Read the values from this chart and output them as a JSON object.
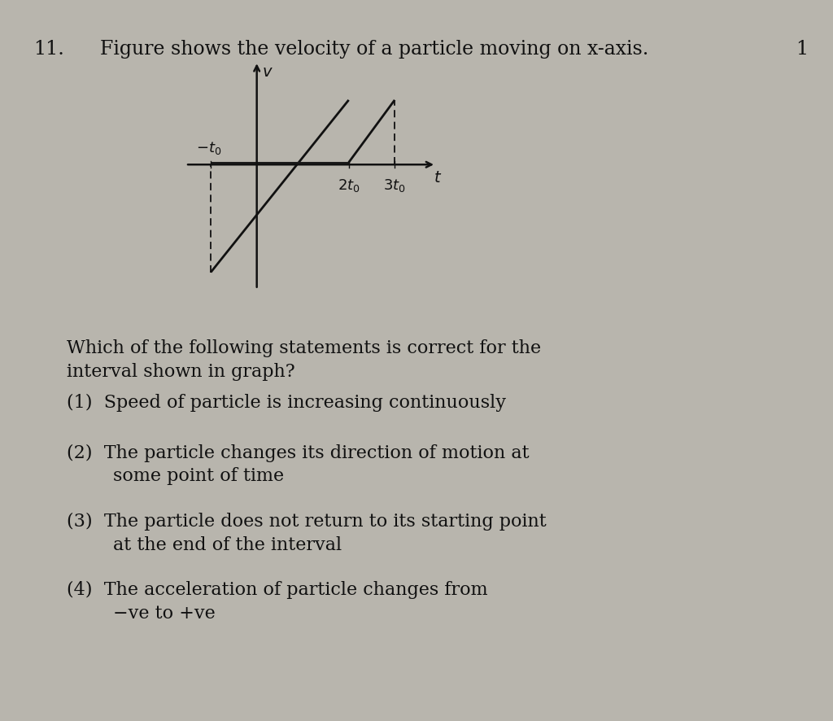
{
  "title_num": "11.",
  "title_text": "Figure shows the velocity of a particle moving on x-axis.",
  "question_text": "Which of the following statements is correct for the\ninterval shown in graph?",
  "options": [
    "(1)  Speed of particle is increasing continuously",
    "(2)  The particle changes its direction of motion at\n        some point of time",
    "(3)  The particle does not return to its starting point\n        at the end of the interval",
    "(4)  The acceleration of particle changes from\n        −ve to +ve"
  ],
  "graph": {
    "steep_line": {
      "x": [
        -1,
        2
      ],
      "y": [
        -2.5,
        1.5
      ],
      "color": "#111111",
      "linewidth": 2.0
    },
    "shallow_line": {
      "x": [
        -1,
        2
      ],
      "y": [
        0.05,
        0.05
      ],
      "color": "#1a1a1a",
      "linewidth": 1.5
    },
    "rise_line": {
      "x": [
        2,
        3
      ],
      "y": [
        0.05,
        1.5
      ],
      "color": "#111111",
      "linewidth": 2.0
    },
    "dashed_v": {
      "x": [
        3,
        3
      ],
      "y": [
        0,
        1.5
      ],
      "color": "#111111",
      "linewidth": 1.3,
      "linestyle": "dashed"
    },
    "dashed_at_neg_t0": {
      "x": [
        -1,
        -1
      ],
      "y": [
        -2.5,
        0
      ],
      "color": "#111111",
      "linewidth": 1.3,
      "linestyle": "dashed"
    },
    "xlim": [
      -1.6,
      4.2
    ],
    "ylim": [
      -3.2,
      2.5
    ]
  },
  "bg_color": "#b8b5ad",
  "text_color": "#111111",
  "graph_bg": "#b8b5ad",
  "title_fontsize": 17,
  "body_fontsize": 16,
  "graph_label_fontsize": 13
}
